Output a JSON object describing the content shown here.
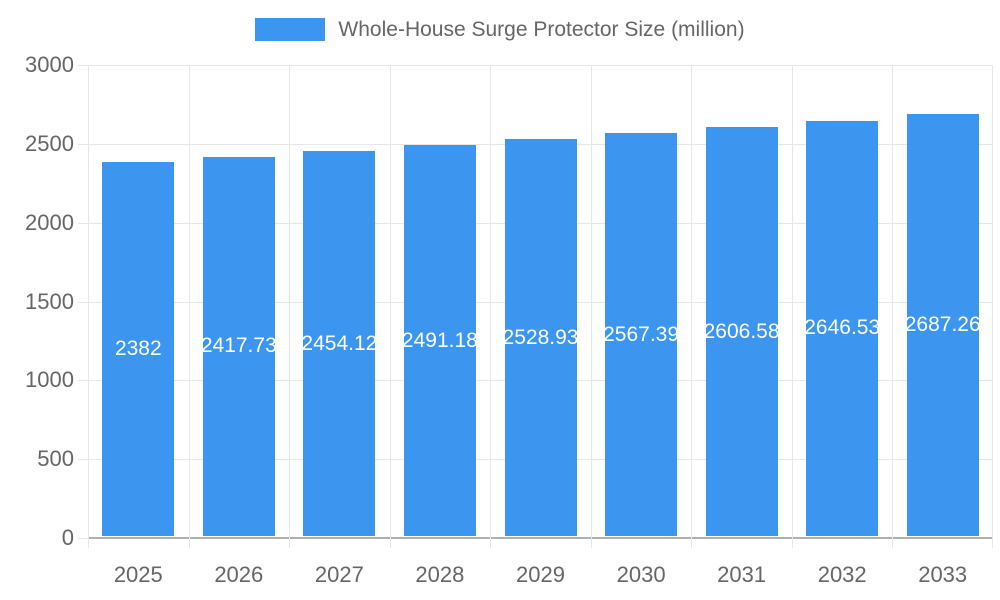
{
  "legend": {
    "label": "Whole-House Surge Protector Size (million)"
  },
  "chart_data": {
    "type": "bar",
    "title": "Whole-House Surge Protector Size (million)",
    "categories": [
      "2025",
      "2026",
      "2027",
      "2028",
      "2029",
      "2030",
      "2031",
      "2032",
      "2033"
    ],
    "values": [
      2382,
      2417.73,
      2454.12,
      2491.18,
      2528.93,
      2567.39,
      2606.58,
      2646.53,
      2687.26
    ],
    "value_labels": [
      "2382",
      "2417.73",
      "2454.12",
      "2491.18",
      "2528.93",
      "2567.39",
      "2606.58",
      "2646.53",
      "2687.26"
    ],
    "xlabel": "",
    "ylabel": "",
    "ylim": [
      0,
      3000
    ],
    "yticks": [
      0,
      500,
      1000,
      1500,
      2000,
      2500,
      3000
    ],
    "ytick_labels": [
      "0",
      "500",
      "1000",
      "1500",
      "2000",
      "2500",
      "3000"
    ],
    "grid": true,
    "legend_position": "top",
    "colors": {
      "bar": "#3C96F0",
      "grid": "#E6E6E6",
      "baseline": "#B0B0B0",
      "tick_text": "#666666",
      "legend_text": "#666666",
      "value_label_text": "#FFFFFF",
      "background": "#FFFFFF"
    }
  }
}
